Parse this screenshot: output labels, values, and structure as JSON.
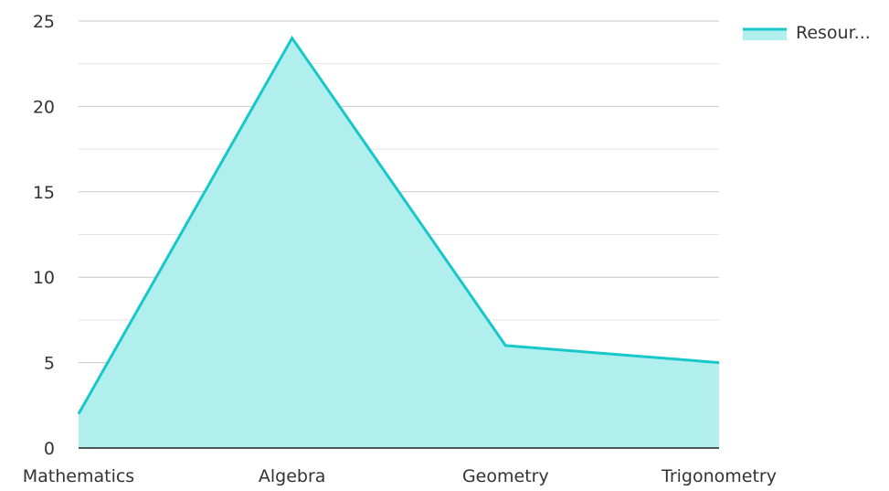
{
  "chart_data": {
    "type": "area",
    "title": "",
    "xlabel": "",
    "ylabel": "",
    "categories": [
      "Mathematics",
      "Algebra",
      "Geometry",
      "Trigonometry"
    ],
    "series": [
      {
        "name": "Resour...",
        "values": [
          2,
          24,
          6,
          5
        ],
        "line_color": "#17c8c8",
        "fill_color": "#b1eeee"
      }
    ],
    "ylim": [
      0,
      25
    ],
    "y_ticks": [
      0,
      5,
      10,
      15,
      20,
      25
    ],
    "grid": true,
    "legend_position": "top-right"
  }
}
